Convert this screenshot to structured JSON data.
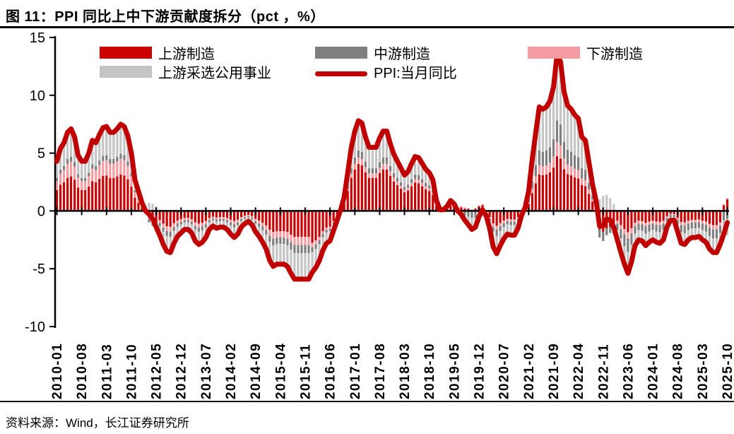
{
  "title": "图  11：PPI 同比上中下游贡献度拆分（pct ，%）",
  "source": "资料来源：Wind，长江证券研究所",
  "colors": {
    "accent_red": "#C00000",
    "bar_red": "#CC0000",
    "bar_pink": "#F59CA2",
    "bar_gray": "#7F7F7F",
    "bar_lightgray": "#C4C4C4",
    "axis_black": "#000000"
  },
  "legend": {
    "items": [
      {
        "label": "上游制造",
        "type": "bar",
        "color_key": "bar_red"
      },
      {
        "label": "中游制造",
        "type": "bar",
        "color_key": "bar_gray"
      },
      {
        "label": "下游制造",
        "type": "bar",
        "color_key": "bar_pink"
      },
      {
        "label": "上游采选公用事业",
        "type": "bar",
        "color_key": "bar_lightgray"
      },
      {
        "label": "PPI:当月同比",
        "type": "line",
        "color_key": "accent_red"
      }
    ]
  },
  "chart_data": {
    "type": "bar",
    "subtype": "stacked-contribution-bars-with-line",
    "title": "PPI 同比上中下游贡献度拆分",
    "unit": "pct ，%",
    "x_start": "2010-01",
    "x_end": "2025-10",
    "months": 190,
    "ylim": [
      -10,
      15
    ],
    "y_ticks": [
      15,
      10,
      5,
      0,
      -5,
      -10
    ],
    "x_tick_labels": [
      "2010-01",
      "2010-08",
      "2011-03",
      "2011-10",
      "2012-05",
      "2012-12",
      "2013-07",
      "2014-02",
      "2014-09",
      "2015-04",
      "2015-11",
      "2016-06",
      "2017-01",
      "2017-08",
      "2018-03",
      "2018-10",
      "2019-05",
      "2019-12",
      "2020-07",
      "2021-02",
      "2021-09",
      "2022-04",
      "2022-11",
      "2023-06",
      "2024-01",
      "2024-08",
      "2025-03",
      "2025-10"
    ],
    "x_tick_indices": [
      0,
      7,
      14,
      21,
      28,
      35,
      42,
      49,
      56,
      63,
      70,
      77,
      84,
      91,
      98,
      105,
      112,
      119,
      126,
      133,
      140,
      147,
      154,
      161,
      168,
      175,
      182,
      189
    ],
    "line_series": {
      "name": "PPI:当月同比",
      "values": [
        4.3,
        5.4,
        5.9,
        6.8,
        7.1,
        6.4,
        4.8,
        4.3,
        4.3,
        5.0,
        6.1,
        5.9,
        6.6,
        7.2,
        7.3,
        6.8,
        6.8,
        7.1,
        7.5,
        7.3,
        6.5,
        5.0,
        2.7,
        1.7,
        0.7,
        0.0,
        -0.3,
        -0.7,
        -1.4,
        -2.1,
        -2.9,
        -3.5,
        -3.6,
        -2.8,
        -2.2,
        -1.9,
        -1.6,
        -1.6,
        -1.9,
        -2.6,
        -2.9,
        -2.7,
        -2.3,
        -1.6,
        -1.3,
        -1.5,
        -1.4,
        -1.4,
        -1.6,
        -2.0,
        -2.3,
        -2.0,
        -1.4,
        -1.1,
        -0.9,
        -1.2,
        -1.8,
        -2.2,
        -2.7,
        -3.3,
        -4.3,
        -4.8,
        -4.6,
        -4.6,
        -4.6,
        -4.8,
        -5.4,
        -5.9,
        -5.9,
        -5.9,
        -5.9,
        -5.9,
        -5.3,
        -4.9,
        -4.3,
        -3.4,
        -2.8,
        -2.6,
        -1.7,
        -0.8,
        0.1,
        1.2,
        3.3,
        5.5,
        6.9,
        7.8,
        7.6,
        6.4,
        5.5,
        5.5,
        5.5,
        6.3,
        6.9,
        6.9,
        5.8,
        4.9,
        4.3,
        3.7,
        3.1,
        3.4,
        4.1,
        4.7,
        4.6,
        4.1,
        3.6,
        3.3,
        2.7,
        0.9,
        0.1,
        0.1,
        0.4,
        0.9,
        0.6,
        0.0,
        -0.3,
        -0.8,
        -1.2,
        -1.6,
        -1.4,
        -0.5,
        0.1,
        -0.4,
        -1.5,
        -3.1,
        -3.7,
        -3.0,
        -2.4,
        -2.0,
        -2.1,
        -2.1,
        -1.5,
        -0.4,
        0.3,
        1.7,
        4.4,
        6.8,
        9.0,
        8.8,
        9.0,
        9.5,
        10.7,
        13.5,
        12.9,
        10.3,
        9.1,
        8.8,
        8.3,
        8.0,
        6.4,
        6.1,
        4.2,
        2.3,
        0.9,
        -1.3,
        -1.3,
        -0.7,
        -0.8,
        -1.4,
        -2.5,
        -3.6,
        -4.6,
        -5.4,
        -4.4,
        -3.0,
        -2.5,
        -2.6,
        -3.0,
        -2.7,
        -2.5,
        -2.7,
        -2.8,
        -2.5,
        -1.4,
        -0.8,
        -0.8,
        -1.8,
        -2.8,
        -2.9,
        -2.5,
        -2.3,
        -2.3,
        -2.2,
        -2.5,
        -2.7,
        -3.3,
        -3.6,
        -3.6,
        -2.9,
        -2.0,
        -1.0
      ]
    },
    "bar_series": {
      "note": "stacked contributions to PPI YoY (pct); estimated as shares of the line total, drawn from the zero axis outward",
      "stack_order": [
        "上游制造",
        "下游制造",
        "中游制造",
        "上游采选公用事业"
      ],
      "color_keys": [
        "bar_red",
        "bar_pink",
        "bar_gray",
        "bar_lightgray"
      ],
      "fraction_eras": [
        {
          "from": 0,
          "fractions": [
            0.42,
            0.18,
            0.06,
            0.34
          ]
        },
        {
          "from": 27,
          "fractions": [
            0.38,
            0.12,
            0.12,
            0.38
          ]
        },
        {
          "from": 72,
          "fractions": [
            0.52,
            0.07,
            0.08,
            0.33
          ]
        },
        {
          "from": 120,
          "fractions": [
            0.35,
            0.09,
            0.14,
            0.42
          ]
        },
        {
          "from": 156,
          "fractions": [
            0.34,
            0.1,
            0.22,
            0.34
          ]
        }
      ],
      "overrides": {
        "26": [
          -0.6,
          -0.1,
          -0.3,
          0.7
        ],
        "27": [
          -0.8,
          -0.1,
          -0.4,
          0.6
        ],
        "28": [
          -1.2,
          -0.2,
          -0.4,
          0.4
        ],
        "114": [
          0.3,
          0.1,
          -0.3,
          -0.4
        ],
        "115": [
          0.2,
          0.1,
          -0.4,
          -0.7
        ],
        "116": [
          0.2,
          0.0,
          -0.5,
          -0.9
        ],
        "117": [
          0.1,
          0.0,
          -0.6,
          -1.1
        ],
        "118": [
          0.2,
          0.0,
          -0.6,
          -1.0
        ],
        "119": [
          0.4,
          0.1,
          -0.4,
          -0.6
        ],
        "120": [
          0.5,
          0.1,
          -0.2,
          -0.3
        ],
        "153": [
          -1.6,
          0.2,
          -0.7,
          0.8
        ],
        "154": [
          -1.8,
          0.2,
          -0.8,
          1.1
        ],
        "155": [
          -1.5,
          0.2,
          -0.6,
          1.2
        ],
        "156": [
          -1.4,
          0.2,
          -0.5,
          0.9
        ],
        "157": [
          -1.5,
          0.1,
          -0.5,
          0.5
        ],
        "188": [
          0.5,
          0.1,
          -0.8,
          -1.8
        ],
        "189": [
          1.0,
          0.1,
          -0.7,
          -1.4
        ]
      }
    }
  }
}
